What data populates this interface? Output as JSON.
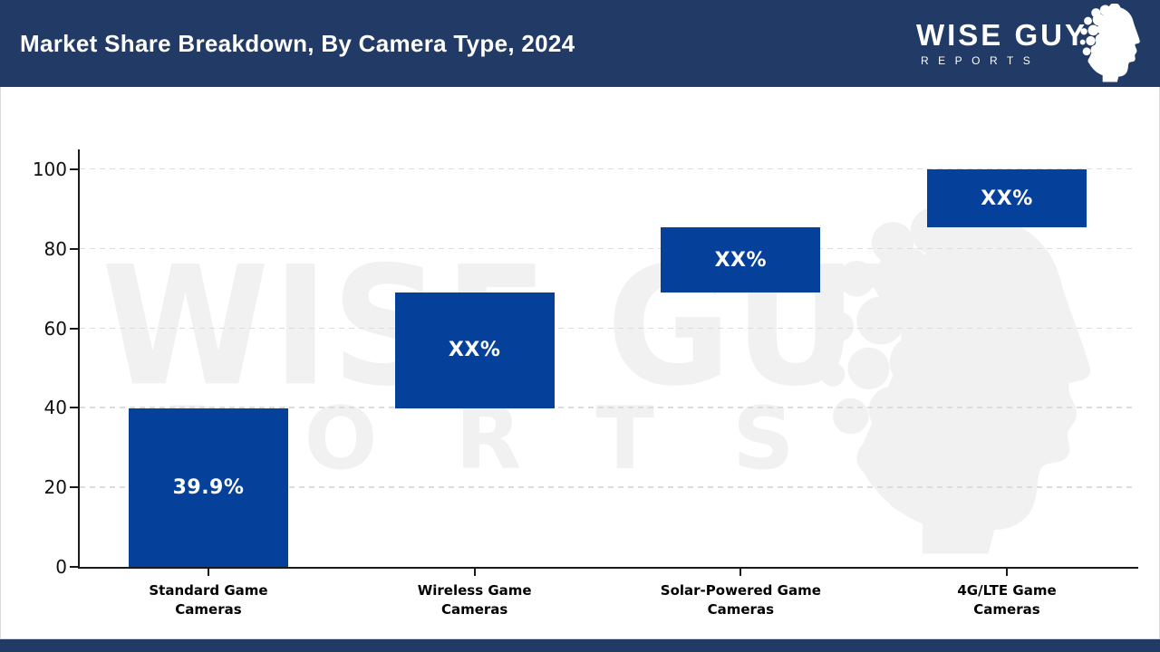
{
  "header": {
    "title": "Market Share Breakdown, By Camera Type, 2024",
    "logo": {
      "name": "WISE GUY",
      "sub": "REPORTS"
    }
  },
  "watermark": {
    "line1": "WISE GUY",
    "line2": "PORTS"
  },
  "chart_data": {
    "type": "bar",
    "variant": "waterfall",
    "title": "Market Share Breakdown, By Camera Type, 2024",
    "categories": [
      "Standard Game Cameras",
      "Wireless Game Cameras",
      "Solar-Powered Game Cameras",
      "4G/LTE Game Cameras"
    ],
    "category_lines": [
      [
        "Standard Game",
        "Cameras"
      ],
      [
        "Wireless Game",
        "Cameras"
      ],
      [
        "Solar-Powered Game",
        "Cameras"
      ],
      [
        "4G/LTE Game",
        "Cameras"
      ]
    ],
    "bars": [
      {
        "start": 0,
        "end": 39.9,
        "value_label": "39.9%"
      },
      {
        "start": 39.9,
        "end": 69.0,
        "value_label": "XX%"
      },
      {
        "start": 69.0,
        "end": 85.4,
        "value_label": "XX%"
      },
      {
        "start": 85.4,
        "end": 100.0,
        "value_label": "XX%"
      }
    ],
    "xlabel": "",
    "ylabel": "",
    "yticks": [
      0,
      20,
      40,
      60,
      80,
      100
    ],
    "ylim": [
      0,
      105
    ],
    "grid": "horizontal-dashed",
    "legend": "none",
    "bar_color": "#05419B",
    "value_label_color": "#FFFFFF"
  },
  "colors": {
    "header_bg": "#213A66",
    "footer_bg": "#213A66",
    "bar_blue": "#05419B",
    "grid": "#DCDCDC",
    "axis": "#1A1A1A",
    "watermark": "#F1F1F2",
    "page_border": "#D9D9D9"
  }
}
